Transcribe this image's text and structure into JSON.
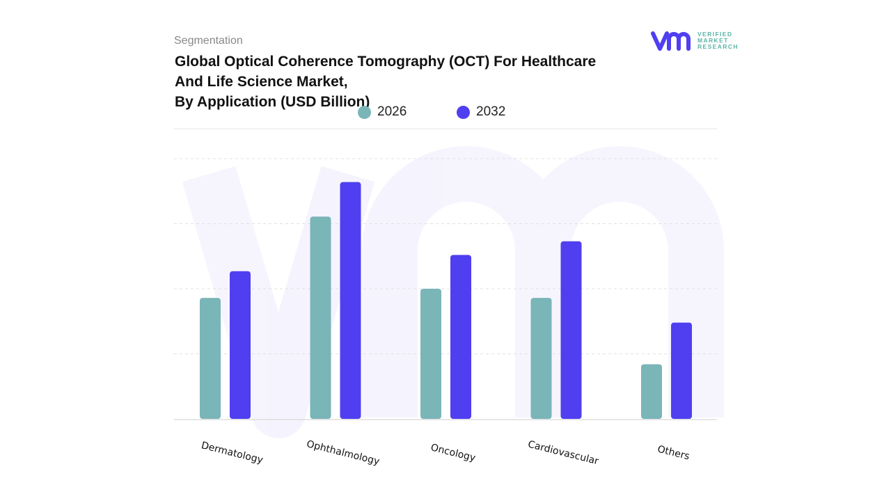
{
  "header": {
    "segment_label": "Segmentation",
    "title": "Global Optical Coherence Tomography (OCT) For Healthcare\nAnd Life Science Market,\nBy Application (USD Billion)"
  },
  "logo": {
    "text_line1": "VERIFIED",
    "text_line2": "MARKET",
    "text_line3": "RESEARCH",
    "mark": "vmr"
  },
  "chart_data": {
    "type": "bar",
    "title": "Global Optical Coherence Tomography (OCT) For Healthcare And Life Science Market, By Application (USD Billion)",
    "categories": [
      "Dermatology",
      "Ophthalmology",
      "Oncology",
      "Cardiovascular",
      "Others"
    ],
    "series": [
      {
        "name": "2026",
        "color": "#7ab5b8",
        "values": [
          1.86,
          3.11,
          2.0,
          1.86,
          0.84
        ]
      },
      {
        "name": "2032",
        "color": "#4f3ff0",
        "values": [
          2.27,
          3.64,
          2.52,
          2.73,
          1.48
        ]
      }
    ],
    "xlabel": "",
    "ylabel": "",
    "ylim": [
      0,
      4
    ],
    "grid": true,
    "legend": "top-center",
    "y_tick_labels_shown": false
  }
}
